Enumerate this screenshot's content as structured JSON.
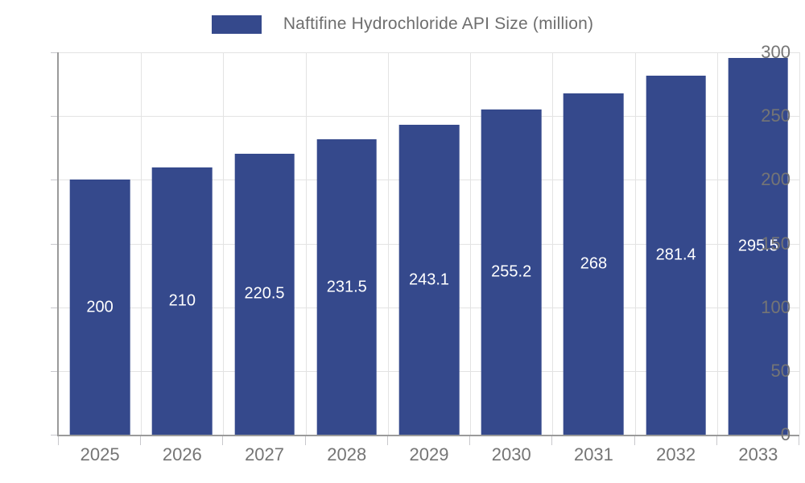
{
  "chart_data": {
    "type": "bar",
    "title": "",
    "legend": "Naftifine Hydrochloride API Size (million)",
    "categories": [
      "2025",
      "2026",
      "2027",
      "2028",
      "2029",
      "2030",
      "2031",
      "2032",
      "2033"
    ],
    "values": [
      200,
      210,
      220.5,
      231.5,
      243.1,
      255.2,
      268,
      281.4,
      295.5
    ],
    "value_labels": [
      "200",
      "210",
      "220.5",
      "231.5",
      "243.1",
      "255.2",
      "268",
      "281.4",
      "295.5"
    ],
    "xlabel": "",
    "ylabel": "",
    "ylim": [
      0,
      300
    ],
    "yticks": [
      0,
      50,
      100,
      150,
      200,
      250,
      300
    ],
    "grid": "on",
    "legend_position": "top-center",
    "colors": {
      "bar": "#35498c",
      "bar_label": "#ffffff",
      "grid": "#e3e3e3",
      "axis": "#9a9a9a",
      "tick": "#c8c8cc",
      "tick_text": "#757575",
      "legend_text": "#6e6e6e",
      "background": "#ffffff"
    }
  }
}
